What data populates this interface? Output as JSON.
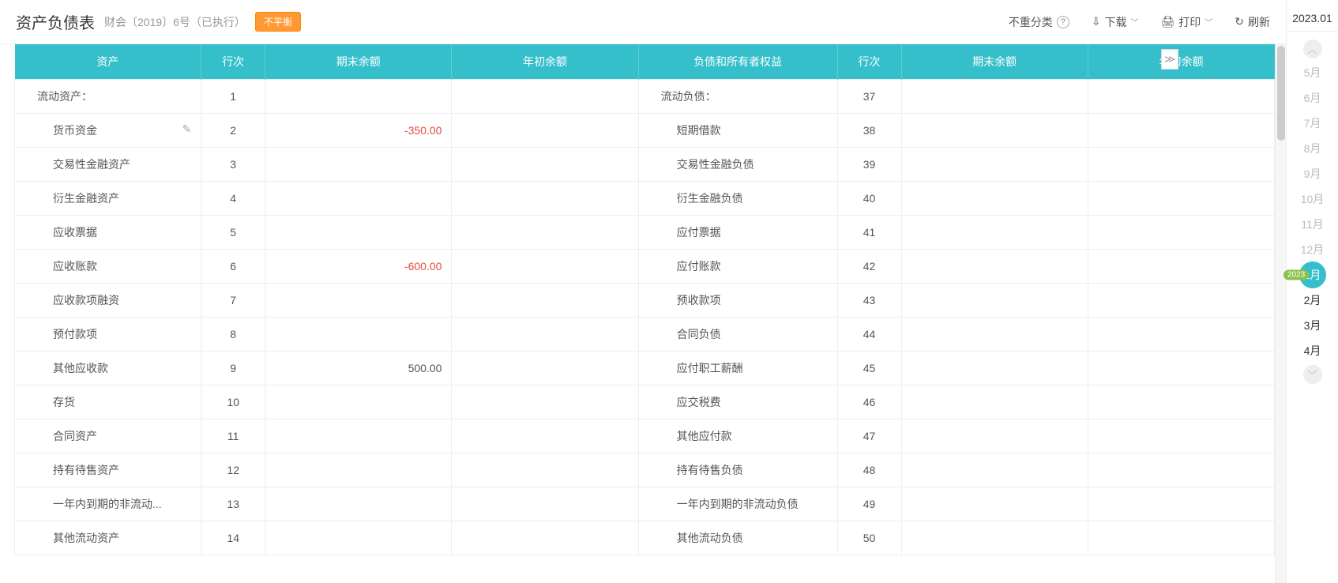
{
  "header": {
    "title": "资产负债表",
    "subtitle": "财会〔2019〕6号（已执行）",
    "badge": "不平衡"
  },
  "toolbar": {
    "classify": "不重分类",
    "download": "下载",
    "print": "打印",
    "refresh": "刷新"
  },
  "columns": {
    "asset": "资产",
    "row": "行次",
    "end_balance": "期末余额",
    "begin_balance": "年初余额",
    "liability": "负债和所有者权益",
    "row2": "行次",
    "end_balance2": "期末余额",
    "begin_balance2": "年初余额"
  },
  "rows": [
    {
      "asset": "流动资产：",
      "indent": 1,
      "row": "1",
      "end": "",
      "begin": "",
      "liab": "流动负债：",
      "lindent": 1,
      "lrow": "37",
      "lend": "",
      "lbegin": ""
    },
    {
      "asset": "货币资金",
      "indent": 2,
      "row": "2",
      "end": "-350.00",
      "neg": true,
      "begin": "",
      "liab": "短期借款",
      "lindent": 2,
      "lrow": "38",
      "lend": "",
      "lbegin": "",
      "editable": true
    },
    {
      "asset": "交易性金融资产",
      "indent": 2,
      "row": "3",
      "end": "",
      "begin": "",
      "liab": "交易性金融负债",
      "lindent": 2,
      "lrow": "39",
      "lend": "",
      "lbegin": ""
    },
    {
      "asset": "衍生金融资产",
      "indent": 2,
      "row": "4",
      "end": "",
      "begin": "",
      "liab": "衍生金融负债",
      "lindent": 2,
      "lrow": "40",
      "lend": "",
      "lbegin": ""
    },
    {
      "asset": "应收票据",
      "indent": 2,
      "row": "5",
      "end": "",
      "begin": "",
      "liab": "应付票据",
      "lindent": 2,
      "lrow": "41",
      "lend": "",
      "lbegin": ""
    },
    {
      "asset": "应收账款",
      "indent": 2,
      "row": "6",
      "end": "-600.00",
      "neg": true,
      "begin": "",
      "liab": "应付账款",
      "lindent": 2,
      "lrow": "42",
      "lend": "",
      "lbegin": ""
    },
    {
      "asset": "应收款项融资",
      "indent": 2,
      "row": "7",
      "end": "",
      "begin": "",
      "liab": "预收款项",
      "lindent": 2,
      "lrow": "43",
      "lend": "",
      "lbegin": ""
    },
    {
      "asset": "预付款项",
      "indent": 2,
      "row": "8",
      "end": "",
      "begin": "",
      "liab": "合同负债",
      "lindent": 2,
      "lrow": "44",
      "lend": "",
      "lbegin": ""
    },
    {
      "asset": "其他应收款",
      "indent": 2,
      "row": "9",
      "end": "500.00",
      "begin": "",
      "liab": "应付职工薪酬",
      "lindent": 2,
      "lrow": "45",
      "lend": "",
      "lbegin": ""
    },
    {
      "asset": "存货",
      "indent": 2,
      "row": "10",
      "end": "",
      "begin": "",
      "liab": "应交税费",
      "lindent": 2,
      "lrow": "46",
      "lend": "",
      "lbegin": ""
    },
    {
      "asset": "合同资产",
      "indent": 2,
      "row": "11",
      "end": "",
      "begin": "",
      "liab": "其他应付款",
      "lindent": 2,
      "lrow": "47",
      "lend": "",
      "lbegin": ""
    },
    {
      "asset": "持有待售资产",
      "indent": 2,
      "row": "12",
      "end": "",
      "begin": "",
      "liab": "持有待售负债",
      "lindent": 2,
      "lrow": "48",
      "lend": "",
      "lbegin": ""
    },
    {
      "asset": "一年内到期的非流动...",
      "indent": 2,
      "row": "13",
      "end": "",
      "begin": "",
      "liab": "一年内到期的非流动负债",
      "lindent": 2,
      "lrow": "49",
      "lend": "",
      "lbegin": ""
    },
    {
      "asset": "其他流动资产",
      "indent": 2,
      "row": "14",
      "end": "",
      "begin": "",
      "liab": "其他流动负债",
      "lindent": 2,
      "lrow": "50",
      "lend": "",
      "lbegin": ""
    }
  ],
  "sidebar": {
    "period": "2023.01",
    "year_tag": "2023",
    "months_gray": [
      "5月",
      "6月",
      "7月",
      "8月",
      "9月",
      "10月",
      "11月",
      "12月"
    ],
    "active": "1月",
    "months_dark": [
      "2月",
      "3月",
      "4月"
    ]
  },
  "colors": {
    "header_bg": "#35bfcb",
    "badge_bg": "#ff9933",
    "negative": "#e74c3c",
    "year_tag": "#8bc34a"
  }
}
